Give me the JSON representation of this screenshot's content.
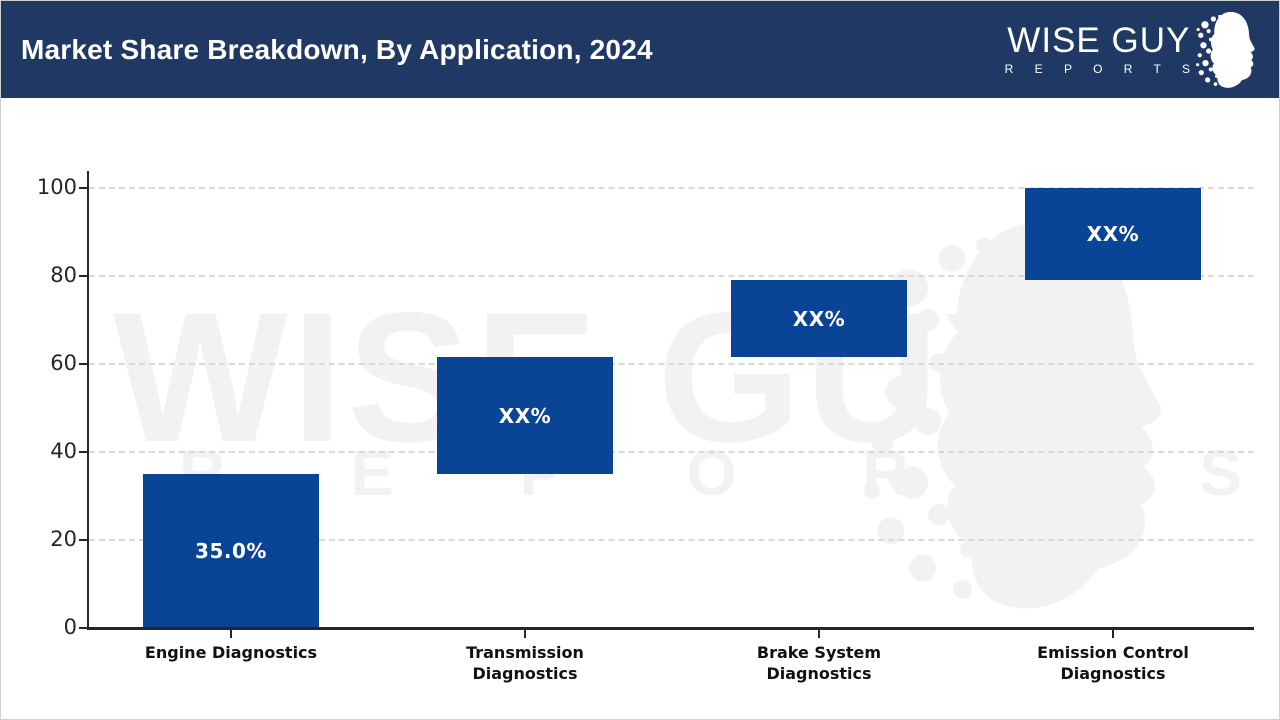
{
  "header": {
    "title": "Market Share Breakdown, By Application, 2024",
    "logo": {
      "wordmark": "WISE GUY",
      "subtext": "R E P O R T S"
    }
  },
  "watermark": {
    "wordmark": "WISE GUY",
    "subtext": "R E P O R T S"
  },
  "colors": {
    "header_bg": "#1f3864",
    "bar": "#0a4496",
    "axis": "#262626",
    "gridline": "#d9d9d9",
    "watermark": "#f2f2f2",
    "bar_label": "#ffffff",
    "text_dark": "#111111"
  },
  "chart_data": {
    "type": "bar",
    "variant": "waterfall",
    "title": "Market Share Breakdown, By Application, 2024",
    "ylim": [
      0,
      100
    ],
    "yticks": [
      0,
      20,
      40,
      60,
      80,
      100
    ],
    "grid": "horizontal-dashed",
    "legend": "none",
    "categories": [
      "Engine Diagnostics",
      "Transmission Diagnostics",
      "Brake System Diagnostics",
      "Emission Control Diagnostics"
    ],
    "category_label_lines": [
      [
        "Engine Diagnostics"
      ],
      [
        "Transmission",
        "Diagnostics"
      ],
      [
        "Brake System",
        "Diagnostics"
      ],
      [
        "Emission Control",
        "Diagnostics"
      ]
    ],
    "segments": [
      {
        "category": "Engine Diagnostics",
        "start": 0,
        "end": 35,
        "label": "35.0%"
      },
      {
        "category": "Transmission Diagnostics",
        "start": 35,
        "end": 61.5,
        "label": "XX%"
      },
      {
        "category": "Brake System Diagnostics",
        "start": 61.5,
        "end": 79,
        "label": "XX%"
      },
      {
        "category": "Emission Control Diagnostics",
        "start": 79,
        "end": 100,
        "label": "XX%"
      }
    ]
  }
}
